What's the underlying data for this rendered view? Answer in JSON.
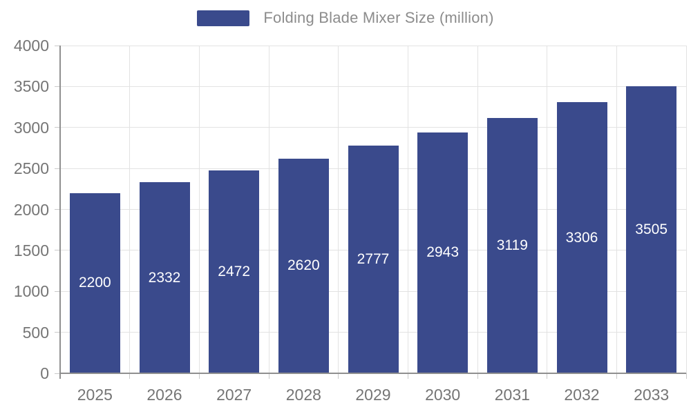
{
  "chart_data": {
    "type": "bar",
    "title": "Folding Blade Mixer Size (million)",
    "categories": [
      "2025",
      "2026",
      "2027",
      "2028",
      "2029",
      "2030",
      "2031",
      "2032",
      "2033"
    ],
    "values": [
      2200,
      2332,
      2472,
      2620,
      2777,
      2943,
      3119,
      3306,
      3505
    ],
    "series": [
      {
        "name": "Folding Blade Mixer Size (million)",
        "values": [
          2200,
          2332,
          2472,
          2620,
          2777,
          2943,
          3119,
          3306,
          3505
        ]
      }
    ],
    "xlabel": "",
    "ylabel": "",
    "ylim": [
      0,
      4000
    ],
    "yticks": [
      0,
      500,
      1000,
      1500,
      2000,
      2500,
      3000,
      3500,
      4000
    ],
    "grid": "both",
    "legend_position": "top-center",
    "value_labels": "inside-center",
    "colors": {
      "bar": "#3A4A8C",
      "grid": "#E2E2E2",
      "axis": "#8F8F8F",
      "axis_tick": "#C9C9C9",
      "tick_label": "#757575",
      "title": "#8C8C8C",
      "value_label": "#FFFFFF",
      "background": "#FFFFFF"
    }
  }
}
